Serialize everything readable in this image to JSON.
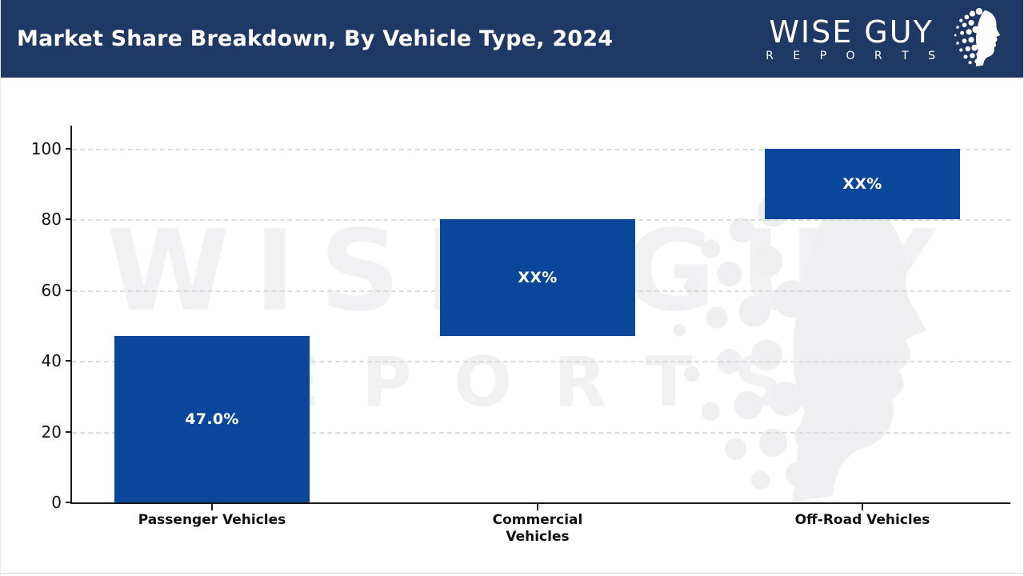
{
  "header": {
    "title": "Market Share Breakdown, By Vehicle Type, 2024",
    "logo": {
      "line1": "WISE GUY",
      "line2": "R E P O R T S"
    }
  },
  "watermark": {
    "line1": "WISE GUY",
    "line2": "REPORTS"
  },
  "chart_data": {
    "type": "bar",
    "subtype": "waterfall-floating-bars",
    "title": "Market Share Breakdown, By Vehicle Type, 2024",
    "categories": [
      "Passenger Vehicles",
      "Commercial Vehicles",
      "Off-Road Vehicles"
    ],
    "bars": [
      {
        "category": "Passenger Vehicles",
        "label": "47.0%",
        "start": 0,
        "end": 47
      },
      {
        "category": "Commercial Vehicles",
        "label": "XX%",
        "start": 47,
        "end": 80
      },
      {
        "category": "Off-Road Vehicles",
        "label": "XX%",
        "start": 80,
        "end": 100
      }
    ],
    "xlabel": "",
    "ylabel": "",
    "ylim": [
      0,
      100
    ],
    "yticks": [
      0,
      20,
      40,
      60,
      80,
      100
    ],
    "grid": "horizontal-dashed",
    "legend": "none",
    "bar_color": "#0a4699"
  },
  "colors": {
    "header_bg": "#1f3864",
    "bar": "#0a4699",
    "grid": "#dcdcdc",
    "axis": "#1a1a1a",
    "watermark": "#f1f1f4"
  }
}
